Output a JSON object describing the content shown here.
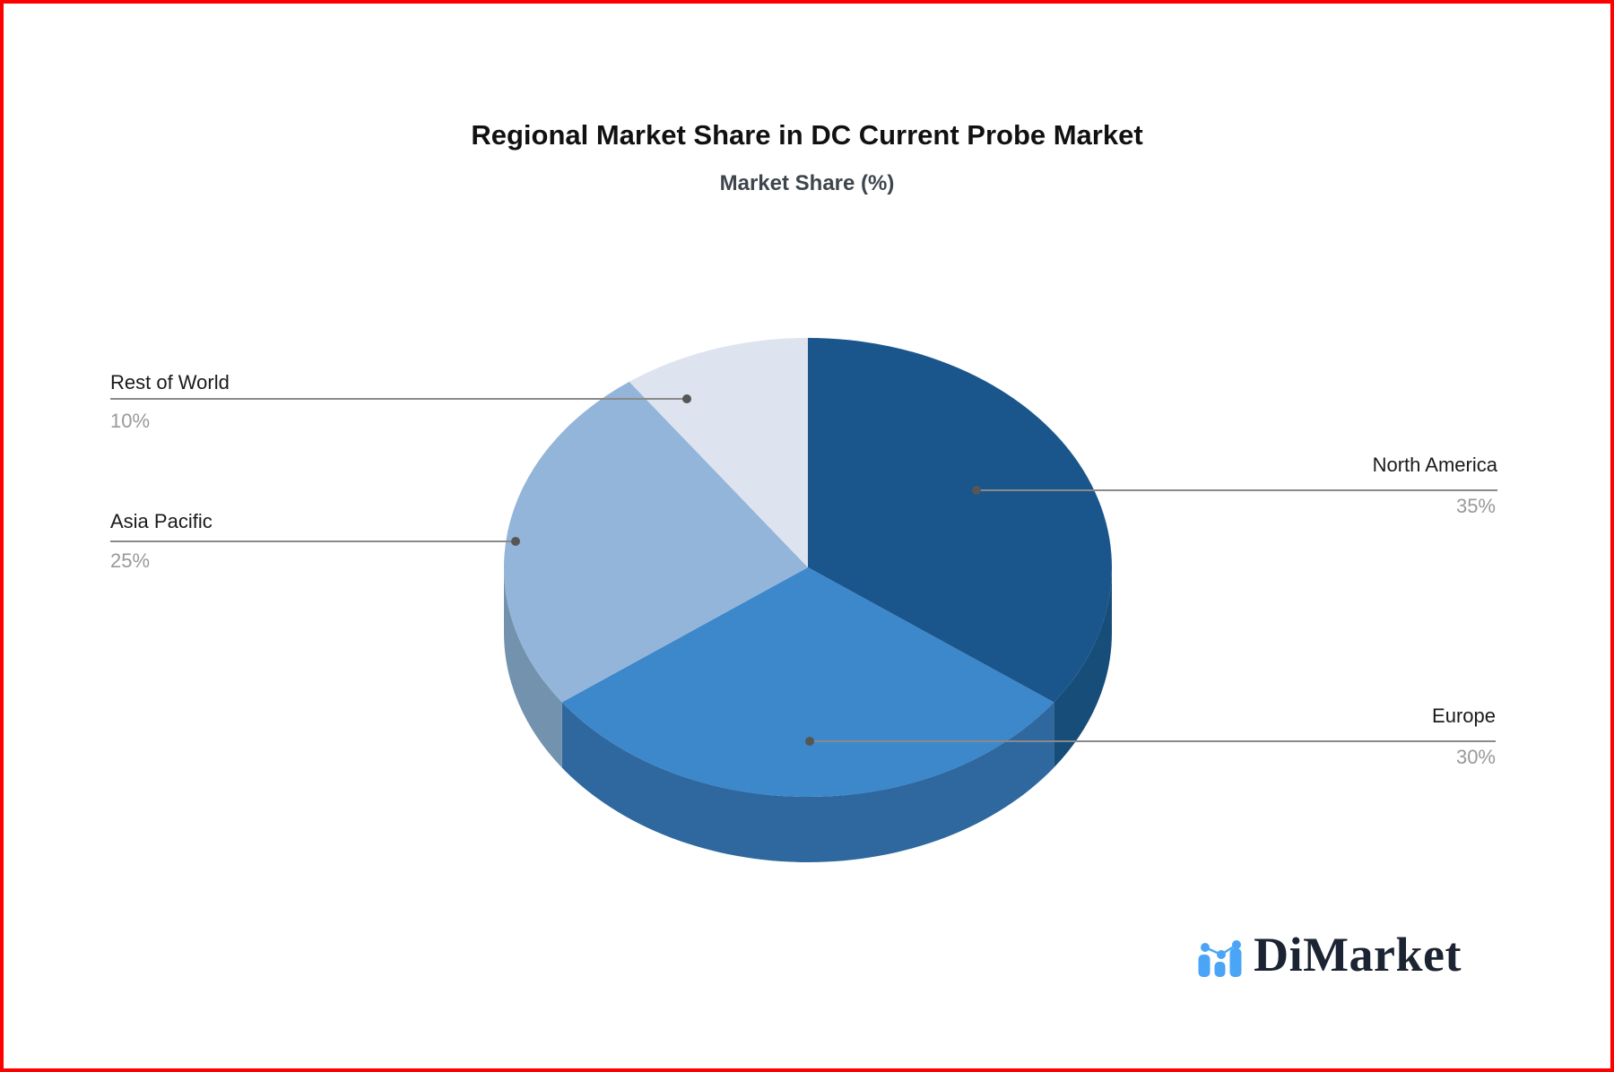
{
  "header": {
    "title": "Regional Market Share in DC Current Probe Market",
    "subtitle": "Market Share (%)"
  },
  "brand": {
    "name": "DiMarket",
    "icon": "bar-chart-icon",
    "icon_color": "#4BA5F6",
    "text_color": "#1C2433"
  },
  "chart_data": {
    "type": "pie",
    "style": "3d-pie",
    "title": "Regional Market Share in DC Current Probe Market",
    "subtitle": "Market Share (%)",
    "unit": "%",
    "start_angle_deg": 0,
    "direction": "clockwise",
    "legend_position": "callout-labels",
    "slices": [
      {
        "label": "North America",
        "value": 35,
        "display": "35%",
        "color": "#1A568C",
        "side_color": "#174D79"
      },
      {
        "label": "Europe",
        "value": 30,
        "display": "30%",
        "color": "#3D87CB",
        "side_color": "#2E689E"
      },
      {
        "label": "Asia Pacific",
        "value": 25,
        "display": "25%",
        "color": "#93B5DA",
        "side_color": "#7292AE"
      },
      {
        "label": "Rest of World",
        "value": 10,
        "display": "10%",
        "color": "#DDE3EF",
        "side_color": "#BAC3D2"
      }
    ],
    "annotation_line_color": "#8a8a8a",
    "annotation_dot_color": "#565656",
    "label_color": "#1a1a1a",
    "value_color": "#98999c"
  }
}
